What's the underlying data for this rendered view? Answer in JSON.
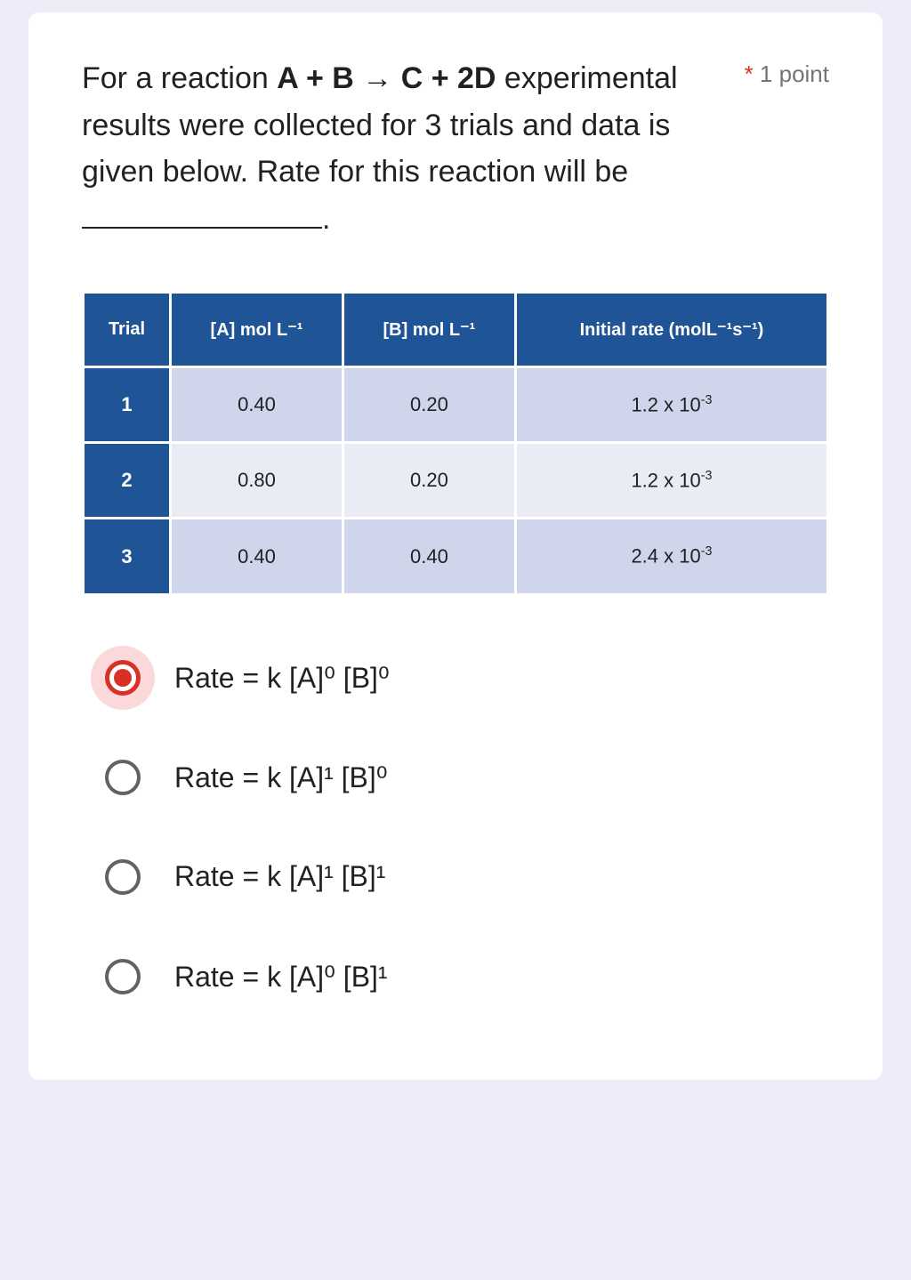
{
  "question": {
    "text_prefix": "For a reaction ",
    "reaction_bold": "A + B → C + 2D",
    "text_mid": " experimental results were collected for 3 trials and data is given below. Rate for this reaction will be",
    "text_suffix": ".",
    "required_mark": "*",
    "points_label": "1 point"
  },
  "table": {
    "headers": [
      "Trial",
      "[A] mol L⁻¹",
      "[B] mol L⁻¹",
      "Initial rate (molL⁻¹s⁻¹)"
    ],
    "rows": [
      {
        "trial": "1",
        "a": "0.40",
        "b": "0.20",
        "rate_base": "1.2 x 10",
        "rate_exp": "-3"
      },
      {
        "trial": "2",
        "a": "0.80",
        "b": "0.20",
        "rate_base": "1.2 x 10",
        "rate_exp": "-3"
      },
      {
        "trial": "3",
        "a": "0.40",
        "b": "0.40",
        "rate_base": "2.4 x 10",
        "rate_exp": "-3"
      }
    ],
    "header_bg": "#1f5597",
    "header_fg": "#ffffff",
    "row_odd_bg": "#cfd5ea",
    "row_even_bg": "#e9ecf5"
  },
  "options": [
    {
      "label_html": "Rate = k [A]⁰ [B]⁰",
      "selected": true
    },
    {
      "label_html": "Rate = k [A]¹ [B]⁰",
      "selected": false
    },
    {
      "label_html": "Rate = k [A]¹ [B]¹",
      "selected": false
    },
    {
      "label_html": "Rate = k [A]⁰ [B]¹",
      "selected": false
    }
  ],
  "colors": {
    "radio_selected_halo": "#fbd8da",
    "radio_selected_ring": "#d93025",
    "radio_selected_dot": "#d93025",
    "radio_unselected_ring": "#5f6368"
  }
}
